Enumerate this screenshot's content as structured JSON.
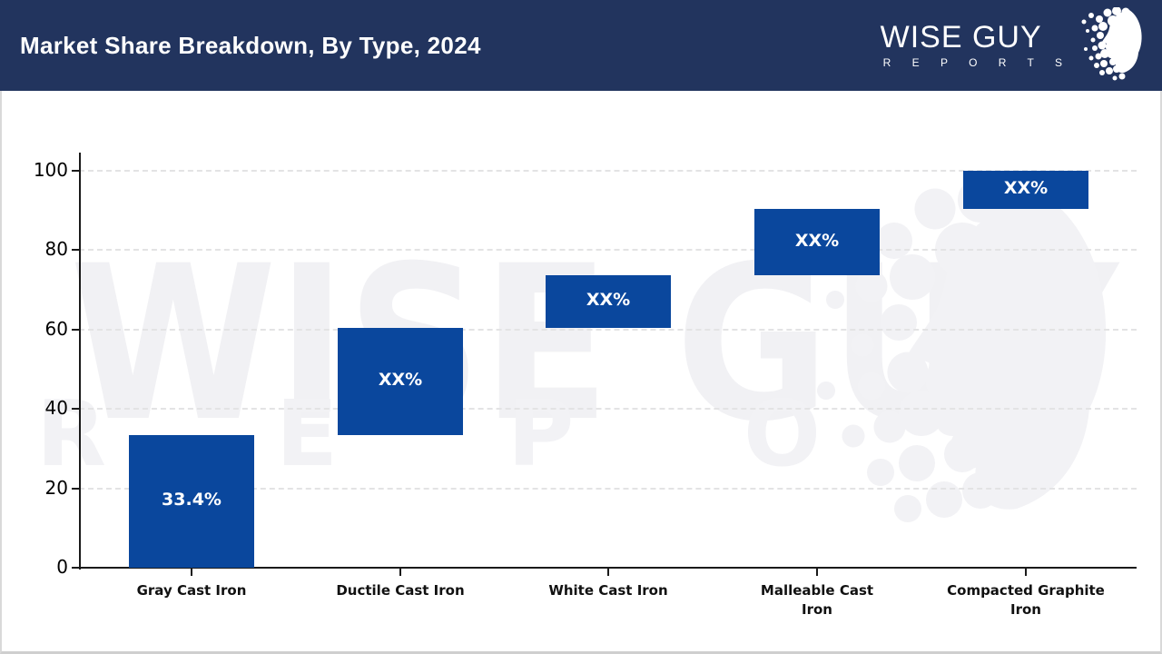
{
  "header": {
    "title": "Market Share Breakdown, By Type, 2024",
    "bg_color": "#22345e",
    "logo": {
      "wordmark": "WISE GUY",
      "subtext": "R E P O R T S"
    }
  },
  "watermark": {
    "line1": "WISE GUY",
    "line2": "R E P O R T S"
  },
  "chart_data": {
    "type": "bar",
    "subtype": "waterfall",
    "title": "Market Share Breakdown, By Type, 2024",
    "categories": [
      "Gray Cast Iron",
      "Ductile Cast Iron",
      "White Cast Iron",
      "Malleable Cast Iron",
      "Compacted Graphite Iron"
    ],
    "category_lines": [
      [
        "Gray Cast Iron"
      ],
      [
        "Ductile Cast Iron"
      ],
      [
        "White Cast Iron"
      ],
      [
        "Malleable Cast",
        "Iron"
      ],
      [
        "Compacted Graphite",
        "Iron"
      ]
    ],
    "segments": [
      {
        "category": "Gray Cast Iron",
        "label": "33.4%",
        "start": 0,
        "end": 33.4
      },
      {
        "category": "Ductile Cast Iron",
        "label": "XX%",
        "start": 33.4,
        "end": 60.3
      },
      {
        "category": "White Cast Iron",
        "label": "XX%",
        "start": 60.3,
        "end": 73.6
      },
      {
        "category": "Malleable Cast Iron",
        "label": "XX%",
        "start": 73.6,
        "end": 90.3
      },
      {
        "category": "Compacted Graphite Iron",
        "label": "XX%",
        "start": 90.3,
        "end": 100
      }
    ],
    "y_ticks": [
      0,
      20,
      40,
      60,
      80,
      100
    ],
    "ylim": [
      0,
      105
    ],
    "xlabel": "",
    "ylabel": "",
    "grid": "horizontal-dashed",
    "legend": "none",
    "bar_color": "#0a479d",
    "bar_label_color": "#ffffff",
    "axis_color": "#1a1a1a"
  }
}
